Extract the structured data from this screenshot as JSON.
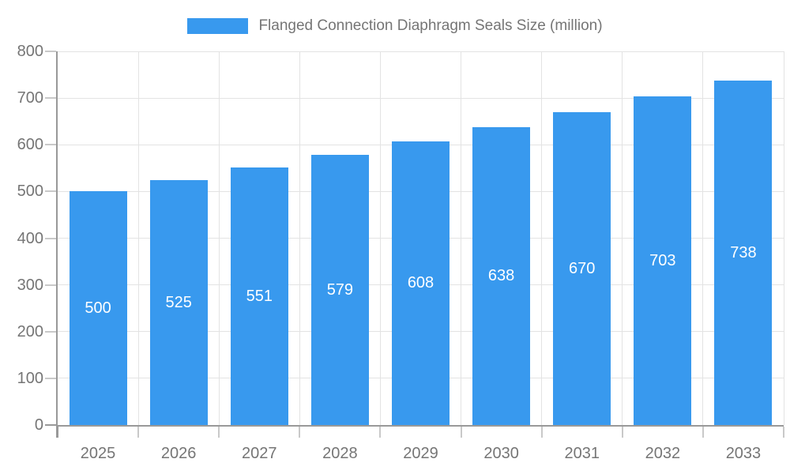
{
  "page": {
    "background": "#ffffff"
  },
  "legend": {
    "label": "Flanged Connection Diaphragm Seals Size (million)",
    "swatch_color": "#3899EE",
    "text_color": "#757575",
    "position": "top-center"
  },
  "chart_data": {
    "type": "bar",
    "title": "Flanged Connection Diaphragm Seals Size (million)",
    "categories": [
      "2025",
      "2026",
      "2027",
      "2028",
      "2029",
      "2030",
      "2031",
      "2032",
      "2033"
    ],
    "values": [
      500,
      525,
      551,
      579,
      608,
      638,
      670,
      703,
      738
    ],
    "xlabel": "",
    "ylabel": "",
    "ylim": [
      0,
      800
    ],
    "yticks": [
      0,
      100,
      200,
      300,
      400,
      500,
      600,
      700,
      800
    ],
    "grid": true,
    "legend_position": "top",
    "bar_color": "#3899EE",
    "value_label_color": "#ffffff",
    "axis_color": "#999999",
    "grid_color": "#e3e3e3",
    "tick_color": "#c9c9c9",
    "label_color": "#757575"
  }
}
